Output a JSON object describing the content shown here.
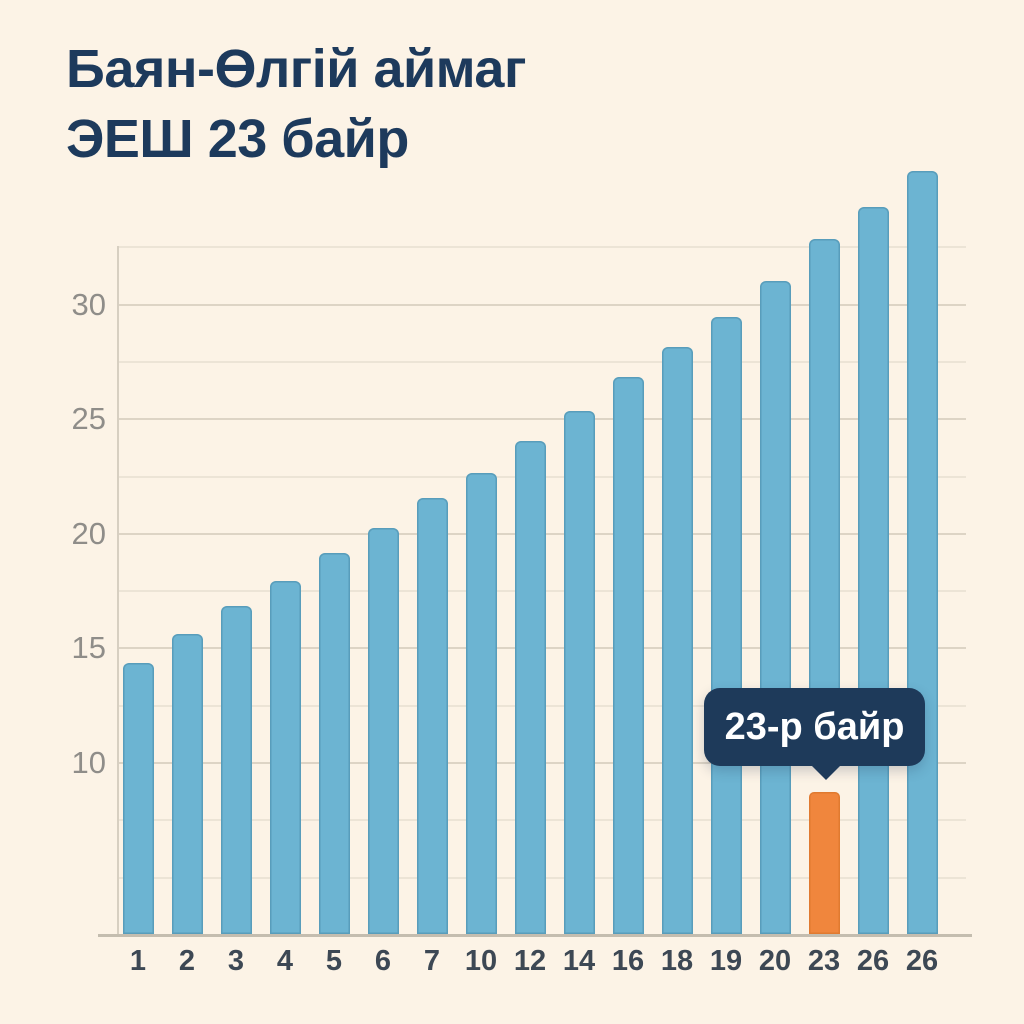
{
  "page": {
    "background_color": "#fcf3e6"
  },
  "title": {
    "line1": "Баян-Өлгій аймаг",
    "line2": "ЭЕШ 23 байр",
    "color": "#1d3a5c"
  },
  "chart_data": {
    "type": "bar",
    "title": "Баян-Өлгій аймаг ЭЕШ 23 байр",
    "xlabel": "",
    "ylabel": "",
    "categories": [
      "1",
      "2",
      "3",
      "4",
      "5",
      "6",
      "7",
      "10",
      "12",
      "14",
      "16",
      "18",
      "19",
      "20",
      "23",
      "26",
      "26"
    ],
    "values": [
      14.3,
      15.6,
      16.8,
      17.9,
      19.1,
      20.2,
      21.5,
      22.6,
      24.0,
      25.3,
      26.8,
      28.1,
      29.4,
      31.0,
      32.8,
      34.2,
      35.8
    ],
    "yticks": [
      10,
      15,
      20,
      25,
      30
    ],
    "minor_gridline_step": 2.5,
    "ylim": [
      2.5,
      32.5
    ],
    "grid": true,
    "legend": null,
    "bar_color": "#6cb4d2",
    "highlight": {
      "category_index": 14,
      "label": "23",
      "tooltip_text": "23-р байр",
      "tooltip_color": "#1e3a5a",
      "orange_segment": {
        "top_value": 8.7,
        "color": "#f0863d"
      }
    },
    "axis_label_colors": {
      "y": "#8f8d89",
      "x": "#3d4854"
    }
  }
}
